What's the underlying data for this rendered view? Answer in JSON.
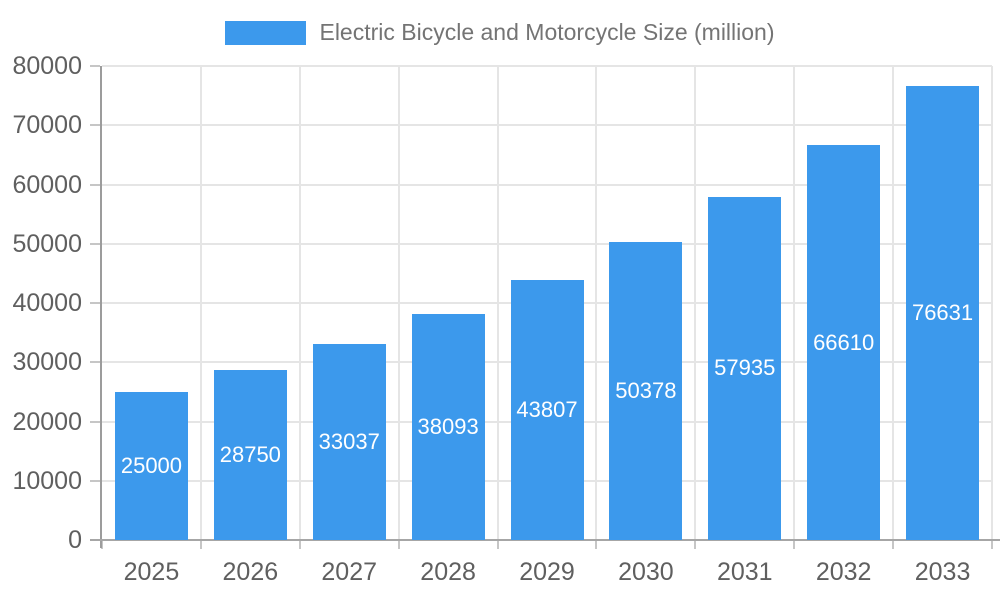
{
  "chart_data": {
    "type": "bar",
    "title": "Electric Bicycle and Motorcycle Size (million)",
    "series_name": "Electric Bicycle and Motorcycle Size (million)",
    "categories": [
      "2025",
      "2026",
      "2027",
      "2028",
      "2029",
      "2030",
      "2031",
      "2032",
      "2033"
    ],
    "values": [
      25000,
      28750,
      33037,
      38093,
      43807,
      50378,
      57935,
      66610,
      76631
    ],
    "bar_labels": [
      "25000",
      "28750",
      "33037",
      "38093",
      "43807",
      "50378",
      "57935",
      "66610",
      "76631"
    ],
    "xlabel": "",
    "ylabel": "",
    "ylim": [
      0,
      80000
    ],
    "ytick_step": 10000,
    "yticks": [
      0,
      10000,
      20000,
      30000,
      40000,
      50000,
      60000,
      70000,
      80000
    ],
    "ytick_labels": [
      "0",
      "10000",
      "20000",
      "30000",
      "40000",
      "50000",
      "60000",
      "70000",
      "80000"
    ],
    "grid": true,
    "legend_position": "top"
  },
  "colors": {
    "bar": "#3C99EC",
    "bar_label": "#ffffff",
    "grid": "#e5e5e5",
    "axis_line": "#9c9c9c",
    "tick": "#c6c6c6",
    "axis_text": "#5f5f5f",
    "title_text": "#747474",
    "background": "#ffffff"
  }
}
